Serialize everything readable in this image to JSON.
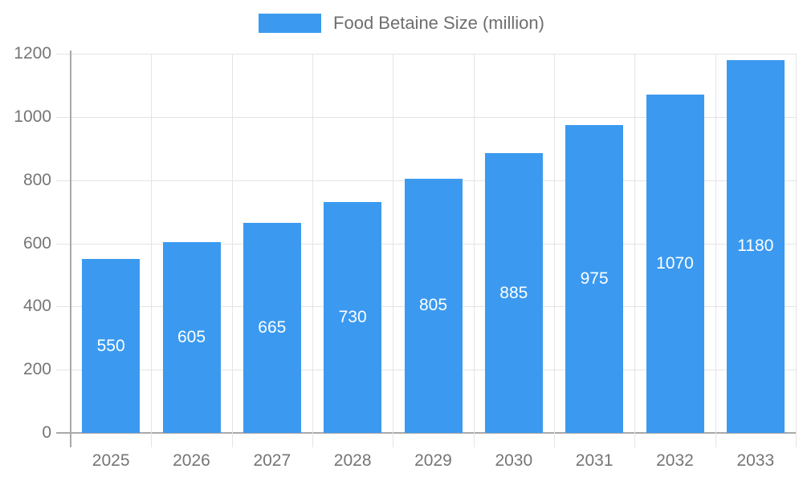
{
  "legend": {
    "label": "Food Betaine Size (million)",
    "swatch_color": "#3b9af0"
  },
  "chart_data": {
    "type": "bar",
    "title": "Food Betaine Size (million)",
    "categories": [
      "2025",
      "2026",
      "2027",
      "2028",
      "2029",
      "2030",
      "2031",
      "2032",
      "2033"
    ],
    "values": [
      550,
      605,
      665,
      730,
      805,
      885,
      975,
      1070,
      1180
    ],
    "value_labels": [
      "550",
      "605",
      "665",
      "730",
      "805",
      "885",
      "975",
      "1070",
      "1180"
    ],
    "xlabel": "",
    "ylabel": "",
    "ylim": [
      0,
      1200
    ],
    "y_ticks": [
      0,
      200,
      400,
      600,
      800,
      1000,
      1200
    ],
    "y_tick_labels": [
      "0",
      "200",
      "400",
      "600",
      "800",
      "1000",
      "1200"
    ],
    "grid": true,
    "legend_position": "top-center",
    "value_labels_inside": true,
    "colors": {
      "bar": "#3b9af0",
      "value_label": "#ffffff",
      "grid": "#e4e4e4",
      "axis": "#a9a9a9",
      "tick_text": "#757575",
      "legend_text": "#6e6e6e",
      "background": "#ffffff"
    }
  }
}
